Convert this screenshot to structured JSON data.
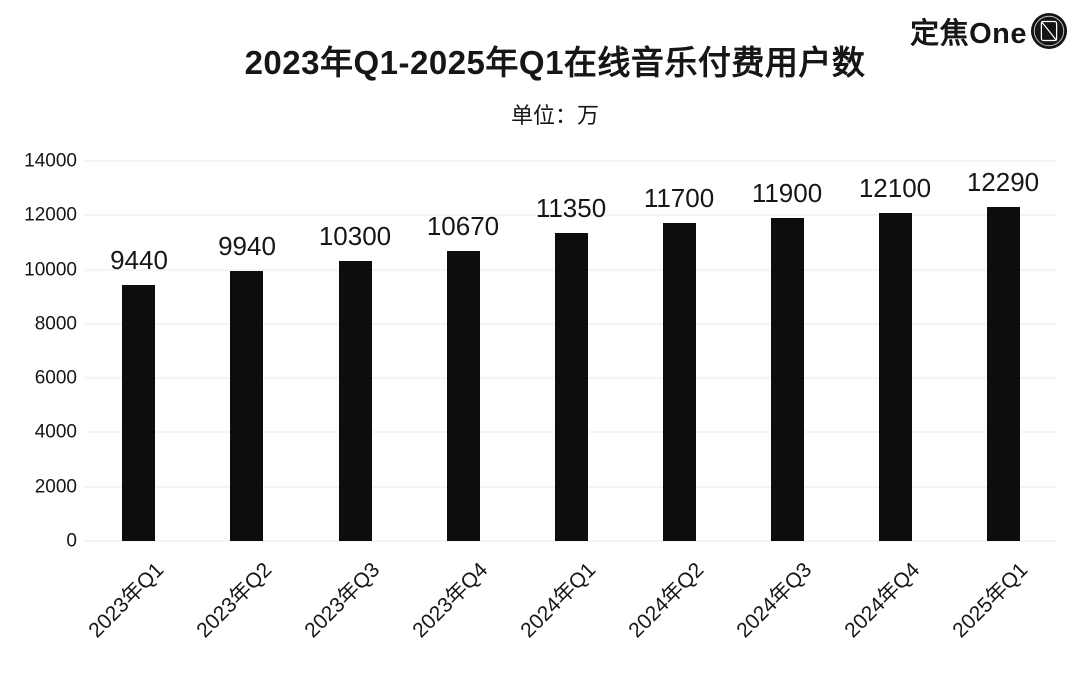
{
  "brand": {
    "logo_text": "定焦One"
  },
  "chart_data": {
    "type": "bar",
    "title": "2023年Q1-2025年Q1在线音乐付费用户数",
    "unit_label": "单位：万",
    "categories": [
      "2023年Q1",
      "2023年Q2",
      "2023年Q3",
      "2023年Q4",
      "2024年Q1",
      "2024年Q2",
      "2024年Q3",
      "2024年Q4",
      "2025年Q1"
    ],
    "values": [
      9440,
      9940,
      10300,
      10670,
      11350,
      11700,
      11900,
      12100,
      12290
    ],
    "ylim": [
      0,
      14000
    ],
    "yticks": [
      0,
      2000,
      4000,
      6000,
      8000,
      10000,
      12000,
      14000
    ],
    "xlabel": "",
    "ylabel": "",
    "xtick_rotation_deg": 45,
    "grid": "horizontal",
    "legend_position": "none",
    "value_labels_shown": true,
    "colors": {
      "bar": "#0d0d0d",
      "gridline": "#e8e8e8",
      "text": "#161616",
      "background": "#ffffff"
    }
  }
}
